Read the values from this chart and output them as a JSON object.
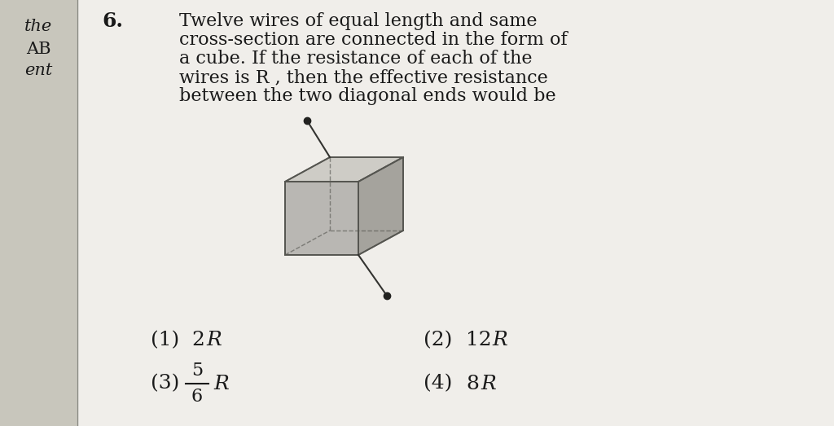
{
  "bg_color": "#e8e6e0",
  "left_col_color": "#c8c6bc",
  "main_bg": "#f0eeea",
  "left_texts": [
    "the",
    "AB",
    "ent"
  ],
  "question_number": "6.",
  "question_text_lines": [
    "Twelve wires of equal length and same",
    "cross-section are connected in the form of",
    "a cube. If the resistance of each of the",
    "wires is R , then the effective resistance",
    "between the two diagonal ends would be"
  ],
  "text_color": "#1a1a1a",
  "font_size_q": 16,
  "font_size_opt": 18,
  "font_size_left": 15,
  "cube_color_front": "#b0aeaa",
  "cube_color_top": "#c8c6c0",
  "cube_color_right": "#989690",
  "cube_edge_color": "#555550",
  "cube_edge_lw": 1.3
}
